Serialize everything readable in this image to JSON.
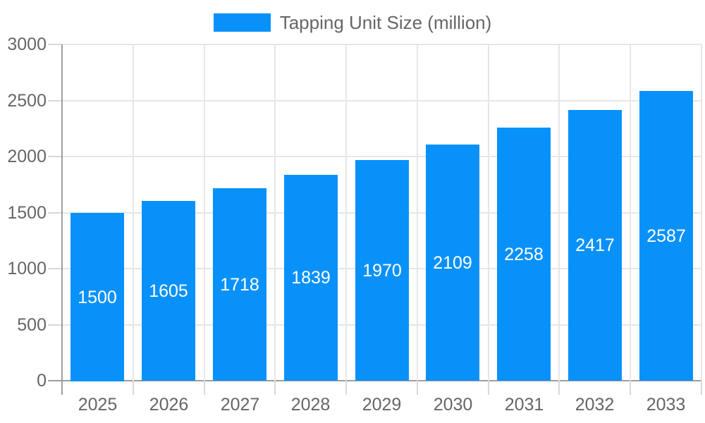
{
  "legend": {
    "label": "Tapping Unit Size (million)"
  },
  "chart_data": {
    "type": "bar",
    "title": "",
    "legend_label": "Tapping Unit Size (million)",
    "legend_position": "top",
    "categories": [
      "2025",
      "2026",
      "2027",
      "2028",
      "2029",
      "2030",
      "2031",
      "2032",
      "2033"
    ],
    "values": [
      1500,
      1605,
      1718,
      1839,
      1970,
      2109,
      2258,
      2417,
      2587
    ],
    "xlabel": "",
    "ylabel": "",
    "ylim": [
      0,
      3000
    ],
    "yticks": [
      0,
      500,
      1000,
      1500,
      2000,
      2500,
      3000
    ],
    "grid": true,
    "value_labels": "inside-center",
    "colors": {
      "bar": "#0991fa",
      "value_label": "#ffffff",
      "axis_text": "#666666",
      "gridline": "#e6e6e6",
      "tick": "#d8d8d8",
      "axis_line": "#9e9e9e",
      "background": "#ffffff"
    }
  }
}
